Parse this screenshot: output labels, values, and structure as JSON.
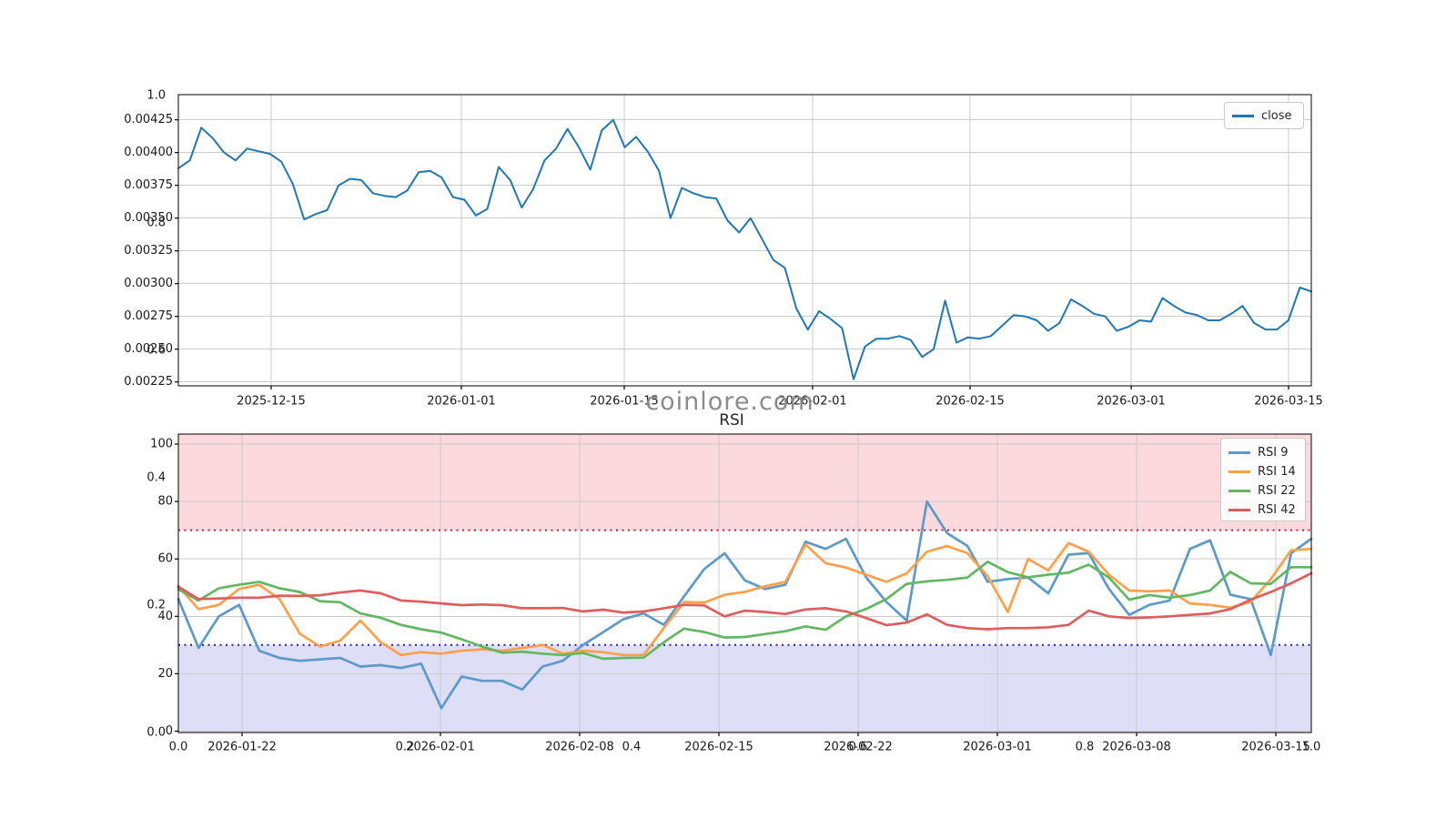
{
  "watermark": "coinlore.com",
  "hidden_axis": {
    "x_ticks": [
      "0.0",
      "0.2",
      "0.4",
      "0.6",
      "0.8",
      "1.0"
    ],
    "y_ticks": [
      "1.0",
      "0.8",
      "0.6",
      "0.4",
      "0.2",
      "0.0"
    ]
  },
  "colors": {
    "grid": "#cbcbcb",
    "spine": "#000000",
    "tick_label": "#1a1a1a",
    "overbought_band": "#fbd9dd",
    "oversold_band": "#dedef7",
    "overbought_line": "#dc143c",
    "oversold_line": "#1a1ae0"
  },
  "chart_data": [
    {
      "id": "price",
      "type": "line",
      "title": "",
      "grid": true,
      "legend_position": "upper right",
      "ylim": [
        0.00222,
        0.004442
      ],
      "y_ticks": [
        {
          "label": "0.00425",
          "v": 0.00425
        },
        {
          "label": "0.00400",
          "v": 0.004
        },
        {
          "label": "0.00375",
          "v": 0.00375
        },
        {
          "label": "0.00350",
          "v": 0.0035
        },
        {
          "label": "0.00325",
          "v": 0.00325
        },
        {
          "label": "0.00300",
          "v": 0.003
        },
        {
          "label": "0.00275",
          "v": 0.00275
        },
        {
          "label": "0.00250",
          "v": 0.0025
        },
        {
          "label": "0.00225",
          "v": 0.00225
        }
      ],
      "x_ticks": [
        {
          "label": "2025-12-15",
          "f": 0.0819
        },
        {
          "label": "2026-01-01",
          "f": 0.2498
        },
        {
          "label": "2026-01-15",
          "f": 0.3936
        },
        {
          "label": "2026-02-01",
          "f": 0.5598
        },
        {
          "label": "2026-02-15",
          "f": 0.6988
        },
        {
          "label": "2026-03-01",
          "f": 0.841
        },
        {
          "label": "2026-03-15",
          "f": 0.9799
        }
      ],
      "series": [
        {
          "name": "close",
          "color": "#1f77b4",
          "width": 2,
          "values": [
            0.00388,
            0.00394,
            0.00419,
            0.00411,
            0.004,
            0.00394,
            0.00403,
            0.00401,
            0.00399,
            0.00393,
            0.00376,
            0.00349,
            0.00353,
            0.00356,
            0.00375,
            0.0038,
            0.00379,
            0.00369,
            0.00367,
            0.00366,
            0.00371,
            0.00385,
            0.00386,
            0.00381,
            0.00366,
            0.00364,
            0.00352,
            0.00357,
            0.00389,
            0.00379,
            0.00358,
            0.00372,
            0.00394,
            0.00403,
            0.00418,
            0.00404,
            0.00387,
            0.00417,
            0.00425,
            0.00404,
            0.00412,
            0.00401,
            0.00386,
            0.0035,
            0.00373,
            0.00369,
            0.00366,
            0.00365,
            0.00348,
            0.00339,
            0.0035,
            0.00334,
            0.00318,
            0.00312,
            0.00281,
            0.00265,
            0.00279,
            0.00273,
            0.00266,
            0.00227,
            0.00252,
            0.00258,
            0.00258,
            0.0026,
            0.00257,
            0.00244,
            0.0025,
            0.00287,
            0.00255,
            0.00259,
            0.00258,
            0.0026,
            0.00268,
            0.00276,
            0.00275,
            0.00272,
            0.00264,
            0.0027,
            0.00288,
            0.00283,
            0.00277,
            0.00275,
            0.00264,
            0.00267,
            0.00272,
            0.00271,
            0.00289,
            0.00283,
            0.00278,
            0.00276,
            0.00272,
            0.00272,
            0.00277,
            0.00283,
            0.0027,
            0.00265,
            0.00265,
            0.00272,
            0.00297,
            0.00294
          ]
        }
      ]
    },
    {
      "id": "rsi",
      "type": "line",
      "title": "RSI",
      "grid": true,
      "legend_position": "upper right",
      "ylim": [
        -0.5,
        103.5
      ],
      "bands": [
        {
          "name": "overbought-zone",
          "from": 70,
          "to": 103.5
        },
        {
          "name": "oversold-zone",
          "from": -0.5,
          "to": 30
        }
      ],
      "hlines": [
        {
          "name": "overbought-threshold",
          "v": 70
        },
        {
          "name": "oversold-threshold",
          "v": 30
        }
      ],
      "y_ticks": [
        {
          "label": "100",
          "v": 100
        },
        {
          "label": "80",
          "v": 80
        },
        {
          "label": "60",
          "v": 60
        },
        {
          "label": "40",
          "v": 40
        },
        {
          "label": "20",
          "v": 20
        },
        {
          "label": "0",
          "v": 0
        }
      ],
      "x_ticks": [
        {
          "label": "2026-01-22",
          "f": 0.0562
        },
        {
          "label": "2026-02-01",
          "f": 0.2313
        },
        {
          "label": "2026-02-08",
          "f": 0.3542
        },
        {
          "label": "2026-02-15",
          "f": 0.4771
        },
        {
          "label": "2026-02-22",
          "f": 0.6
        },
        {
          "label": "2026-03-01",
          "f": 0.7229
        },
        {
          "label": "2026-03-08",
          "f": 0.8458
        },
        {
          "label": "2026-03-15",
          "f": 0.9687
        }
      ],
      "series": [
        {
          "name": "RSI 9",
          "color": "#5b9ac9",
          "width": 2.7,
          "values": [
            46,
            29,
            40,
            44,
            28,
            25.5,
            24.5,
            25,
            25.5,
            22.5,
            23,
            22,
            23.5,
            8,
            19,
            17.5,
            17.5,
            14.5,
            22.5,
            24.5,
            30,
            34.5,
            39,
            41,
            37,
            47,
            56.5,
            62,
            52.5,
            49.5,
            51,
            66,
            63.5,
            67,
            53.5,
            45,
            38.5,
            80,
            69,
            64.5,
            52,
            53,
            53.5,
            48,
            61.5,
            62,
            49.5,
            40.5,
            44,
            45.5,
            63.5,
            66.5,
            47.5,
            46,
            26.5,
            62,
            67
          ]
        },
        {
          "name": "RSI 14",
          "color": "#ff9f4a",
          "width": 2.7,
          "values": [
            50.5,
            42.5,
            44,
            49.5,
            51,
            46,
            34,
            29.5,
            31.5,
            38.5,
            31,
            26.5,
            27.5,
            27,
            28,
            28.5,
            28,
            29,
            30,
            27,
            28,
            27.5,
            26.5,
            26.5,
            36,
            45,
            44.8,
            47.5,
            48.5,
            50.5,
            52,
            65,
            58.5,
            57,
            54.5,
            52,
            55,
            62.5,
            64.5,
            62,
            54,
            41.5,
            60,
            56,
            65.5,
            62.5,
            54.5,
            49,
            48.7,
            49,
            44.5,
            44,
            43,
            45,
            53,
            63,
            63.5
          ]
        },
        {
          "name": "RSI 22",
          "color": "#61b861",
          "width": 2.7,
          "values": [
            49.4,
            45.5,
            49.8,
            51,
            52,
            49.8,
            48.5,
            45.3,
            44.9,
            41,
            39.5,
            37,
            35.5,
            34.3,
            32,
            29.5,
            27.3,
            27.7,
            27,
            26.5,
            27.2,
            25.2,
            25.5,
            25.6,
            31,
            35.7,
            34.5,
            32.6,
            32.8,
            33.8,
            34.8,
            36.5,
            35.3,
            40,
            42.6,
            46,
            51.3,
            52.2,
            52.7,
            53.5,
            59,
            55.4,
            53.6,
            54.5,
            55.2,
            58,
            53.5,
            45.8,
            47.4,
            46.5,
            47.4,
            49,
            55.5,
            51.5,
            51.3,
            57.1,
            57.1
          ]
        },
        {
          "name": "RSI 42",
          "color": "#e05d5e",
          "width": 2.7,
          "values": [
            50.3,
            46,
            46.2,
            46.5,
            46.5,
            47.2,
            47.1,
            47.3,
            48.3,
            49,
            48,
            45.5,
            45.1,
            44.5,
            43.9,
            44.1,
            43.9,
            42.8,
            42.8,
            42.9,
            41.7,
            42.3,
            41.3,
            41.7,
            42.8,
            44,
            43.8,
            40,
            42,
            41.5,
            40.8,
            42.4,
            42.8,
            41.7,
            39.4,
            36.9,
            37.8,
            40.7,
            37,
            35.9,
            35.5,
            35.9,
            35.9,
            36.2,
            37,
            42,
            40,
            39.4,
            39.6,
            40,
            40.5,
            41,
            42.5,
            45.8,
            48.5,
            51.5,
            55
          ]
        }
      ]
    }
  ]
}
